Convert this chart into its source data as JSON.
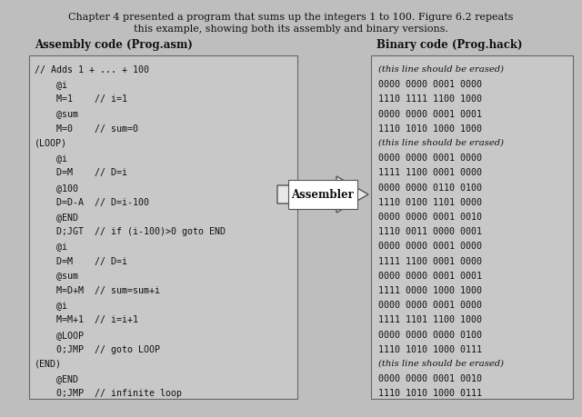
{
  "title_text1": "Chapter 4 presented a program that sums up the integers 1 to 100. Figure 6.2 repeats",
  "title_text2": "this example, showing both its assembly and binary versions.",
  "asm_header": "Assembly code (Prog.asm)",
  "bin_header": "Binary code (Prog.hack)",
  "assembler_label": "Assembler",
  "bg_color": "#bebebe",
  "box_facecolor": "#c8c8c8",
  "asm_lines": [
    "// Adds 1 + ... + 100",
    "    @i",
    "    M=1    // i=1",
    "    @sum",
    "    M=0    // sum=0",
    "(LOOP)",
    "    @i",
    "    D=M    // D=i",
    "    @100",
    "    D=D-A  // D=i-100",
    "    @END",
    "    D;JGT  // if (i-100)>0 goto END",
    "    @i",
    "    D=M    // D=i",
    "    @sum",
    "    M=D+M  // sum=sum+i",
    "    @i",
    "    M=M+1  // i=i+1",
    "    @LOOP",
    "    0;JMP  // goto LOOP",
    "(END)",
    "    @END",
    "    0;JMP  // infinite loop"
  ],
  "bin_lines": [
    "(this line should be erased)",
    "0000 0000 0001 0000",
    "1110 1111 1100 1000",
    "0000 0000 0001 0001",
    "1110 1010 1000 1000",
    "(this line should be erased)",
    "0000 0000 0001 0000",
    "1111 1100 0001 0000",
    "0000 0000 0110 0100",
    "1110 0100 1101 0000",
    "0000 0000 0001 0010",
    "1110 0011 0000 0001",
    "0000 0000 0001 0000",
    "1111 1100 0001 0000",
    "0000 0000 0001 0001",
    "1111 0000 1000 1000",
    "0000 0000 0001 0000",
    "1111 1101 1100 1000",
    "0000 0000 0000 0100",
    "1110 1010 1000 0111",
    "(this line should be erased)",
    "0000 0000 0001 0010",
    "1110 1010 1000 0111"
  ]
}
